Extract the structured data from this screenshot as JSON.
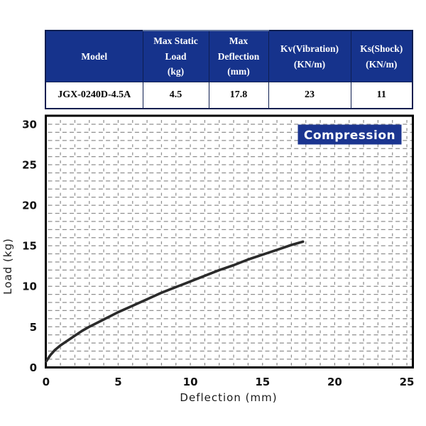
{
  "table": {
    "headers": [
      "Model",
      "Max Static\nLoad\n(kg)",
      "Max\nDeflection\n(mm)",
      "Kv(Vibration)\n(KN/m)",
      "Ks(Shock)\n(KN/m)"
    ],
    "row": [
      "JGX-0240D-4.5A",
      "4.5",
      "17.8",
      "23",
      "11"
    ],
    "header_bg": "#16338C",
    "header_text_color": "#ffffff",
    "border_color": "#0e1e50"
  },
  "badge": {
    "label": "Compression",
    "bg": "#1B3590",
    "text_color": "#ffffff"
  },
  "chart_data": {
    "type": "line",
    "title": "",
    "xlabel": "Deflection (mm)",
    "ylabel": "Load (kg)",
    "xlim": [
      0,
      25
    ],
    "ylim": [
      0,
      30
    ],
    "xticks": [
      0,
      5,
      10,
      15,
      20,
      25
    ],
    "yticks": [
      0,
      5,
      10,
      15,
      20,
      25,
      30
    ],
    "minor_grid_step_x": 1,
    "minor_grid_step_y": 1,
    "grid": true,
    "grid_style": "dashed",
    "grid_color": "#8f8f8f",
    "line_color": "#2b2b2b",
    "legend_position": "top-right",
    "series": [
      {
        "name": "Compression",
        "x": [
          0,
          0.3,
          0.6,
          1,
          1.5,
          2,
          2.5,
          3,
          4,
          5,
          6,
          7,
          8,
          9,
          10,
          11,
          12,
          13,
          14,
          15,
          16,
          17,
          17.8
        ],
        "y": [
          0.7,
          1.5,
          2.1,
          2.7,
          3.3,
          3.9,
          4.5,
          5.0,
          5.9,
          6.8,
          7.6,
          8.4,
          9.2,
          9.9,
          10.6,
          11.3,
          12.0,
          12.6,
          13.3,
          13.9,
          14.5,
          15.1,
          15.5
        ]
      }
    ]
  }
}
